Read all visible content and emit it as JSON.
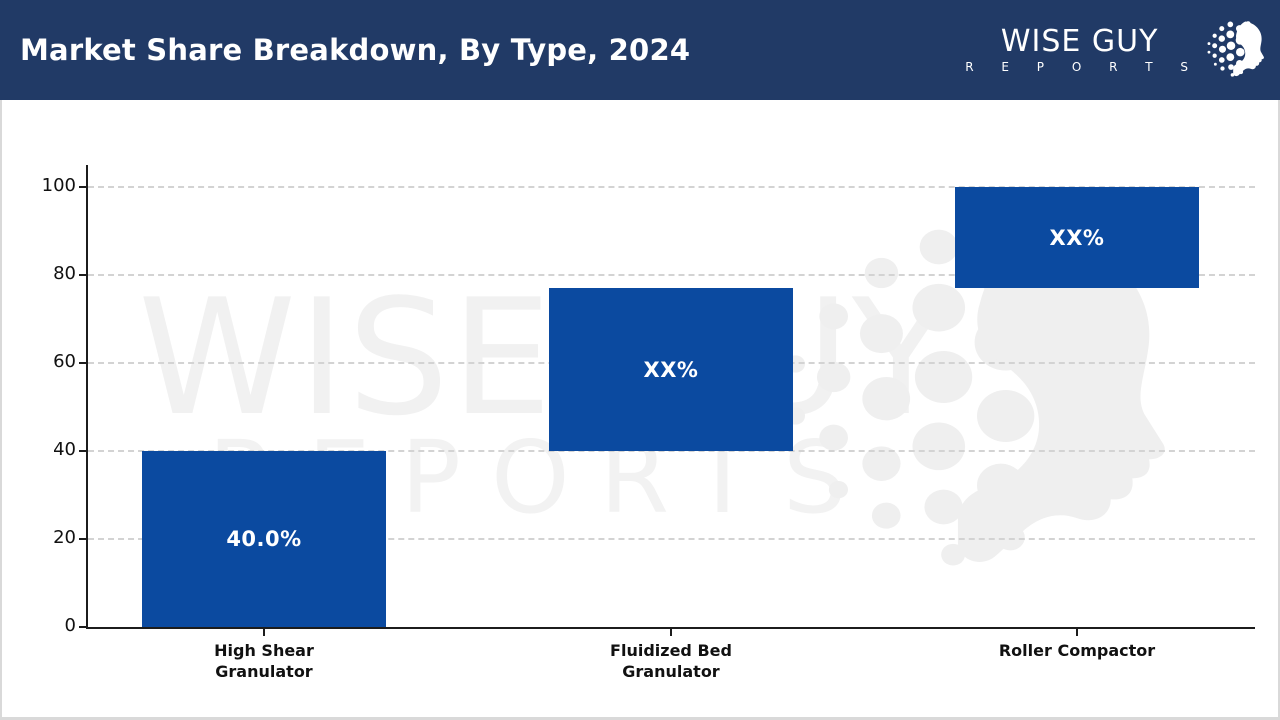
{
  "header": {
    "title": "Market Share Breakdown, By Type, 2024",
    "bg_color": "#213A66",
    "logo": {
      "line1": "WISE GUY",
      "line2": "R E P O R T S"
    }
  },
  "watermark": {
    "line1": "WISE GUY",
    "line2": "REPORTS"
  },
  "chart_data": {
    "type": "bar",
    "subtype": "waterfall-stacked",
    "title": "Market Share Breakdown, By Type, 2024",
    "categories": [
      "High Shear Granulator",
      "Fluidized Bed Granulator",
      "Roller Compactor"
    ],
    "categories_lines": [
      [
        "High Shear",
        "Granulator"
      ],
      [
        "Fluidized Bed",
        "Granulator"
      ],
      [
        "Roller Compactor"
      ]
    ],
    "segments": [
      {
        "category": "High Shear Granulator",
        "start": 0,
        "end": 40,
        "label": "40.0%"
      },
      {
        "category": "Fluidized Bed Granulator",
        "start": 40,
        "end": 77,
        "label": "XX%"
      },
      {
        "category": "Roller Compactor",
        "start": 77,
        "end": 100,
        "label": "XX%"
      }
    ],
    "xlabel": "",
    "ylabel": "",
    "yticks": [
      0,
      20,
      40,
      60,
      80,
      100
    ],
    "ylim": [
      0,
      105
    ],
    "grid": true,
    "legend": false,
    "colors": {
      "bar": "#0B4AA0",
      "bar_label": "#FFFFFF",
      "gridline": "#D3D3D3",
      "axis": "#1C1C1C",
      "tick_label": "#111111",
      "header_bg": "#213A66",
      "watermark": "#F1F1F1"
    }
  }
}
